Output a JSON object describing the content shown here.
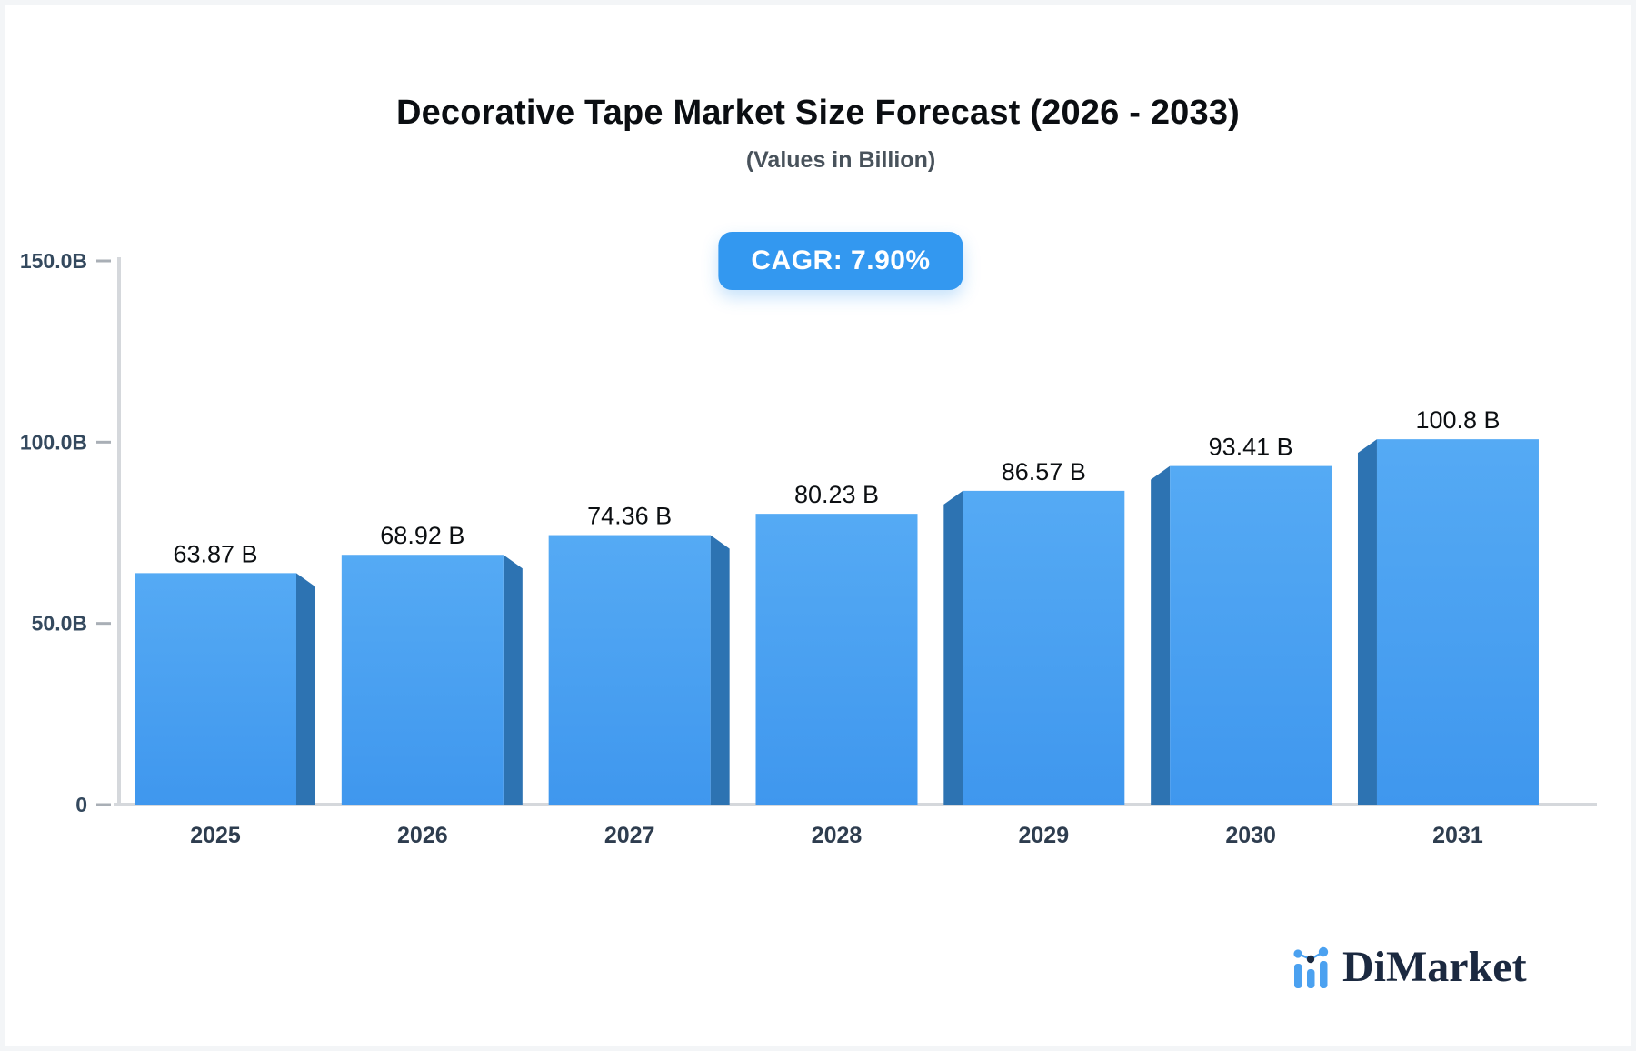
{
  "chart_data": {
    "type": "bar",
    "title": "Decorative Tape Market Size Forecast (2026 - 2033)",
    "subtitle": "(Values in Billion)",
    "cagr_label": "CAGR: 7.90%",
    "categories": [
      "2025",
      "2026",
      "2027",
      "2028",
      "2029",
      "2030",
      "2031"
    ],
    "values": [
      63.87,
      68.92,
      74.36,
      80.23,
      86.57,
      93.41,
      100.8
    ],
    "value_labels": [
      "63.87 B",
      "68.92 B",
      "74.36 B",
      "80.23 B",
      "86.57 B",
      "93.41 B",
      "100.8 B"
    ],
    "series_name": "Market Size (Billion)",
    "ylim": [
      0,
      150
    ],
    "yticks": [
      {
        "value": 150,
        "label": "150.0B"
      },
      {
        "value": 100,
        "label": "100.0B"
      },
      {
        "value": 50,
        "label": "50.0B"
      },
      {
        "value": 0,
        "label": "0"
      }
    ],
    "gridlines": false,
    "legend": false,
    "style_3d": "perspective bars, side faces lean toward center; middle bar flat",
    "colors": {
      "bar_face_top": "#55aaf4",
      "bar_face_bottom": "#3f97ee",
      "bar_side": "#2d73b2",
      "axis_line": "#d5d8dc",
      "tick_dash": "#a9afb6",
      "badge_bg": "#3398f0",
      "badge_text": "#ffffff",
      "title_text": "#0b0e12",
      "subtitle_text": "#48525b",
      "axis_label_text": "#34495e"
    }
  },
  "branding": {
    "name": "DiMarket",
    "icon": "mini-bar-chart-icon",
    "icon_color": "#4ba1f0",
    "text_color": "#1b2940"
  }
}
